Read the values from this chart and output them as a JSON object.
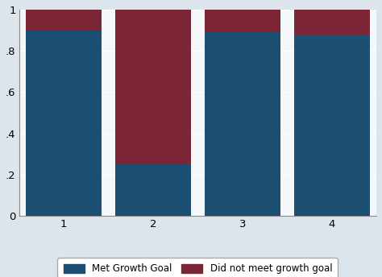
{
  "categories": [
    1,
    2,
    3,
    4
  ],
  "met_goal": [
    0.9,
    0.25,
    0.89,
    0.88
  ],
  "did_not_meet": [
    0.1,
    0.75,
    0.11,
    0.12
  ],
  "color_met": "#1b4f72",
  "color_not_met": "#7b2535",
  "ylim": [
    0,
    1.0
  ],
  "ytick_vals": [
    0,
    0.2,
    0.4,
    0.6,
    0.8,
    1.0
  ],
  "ytick_labels": [
    "0",
    ".2",
    ".4",
    ".6",
    ".8",
    "1"
  ],
  "xtick_labels": [
    "1",
    "2",
    "3",
    "4"
  ],
  "legend_met": "Met Growth Goal",
  "legend_not_met": "Did not meet growth goal",
  "bar_width": 0.85,
  "background_color": "#dce4ec",
  "plot_bg_color": "#f5f8fb",
  "font_size": 9.5,
  "legend_font_size": 8.5
}
